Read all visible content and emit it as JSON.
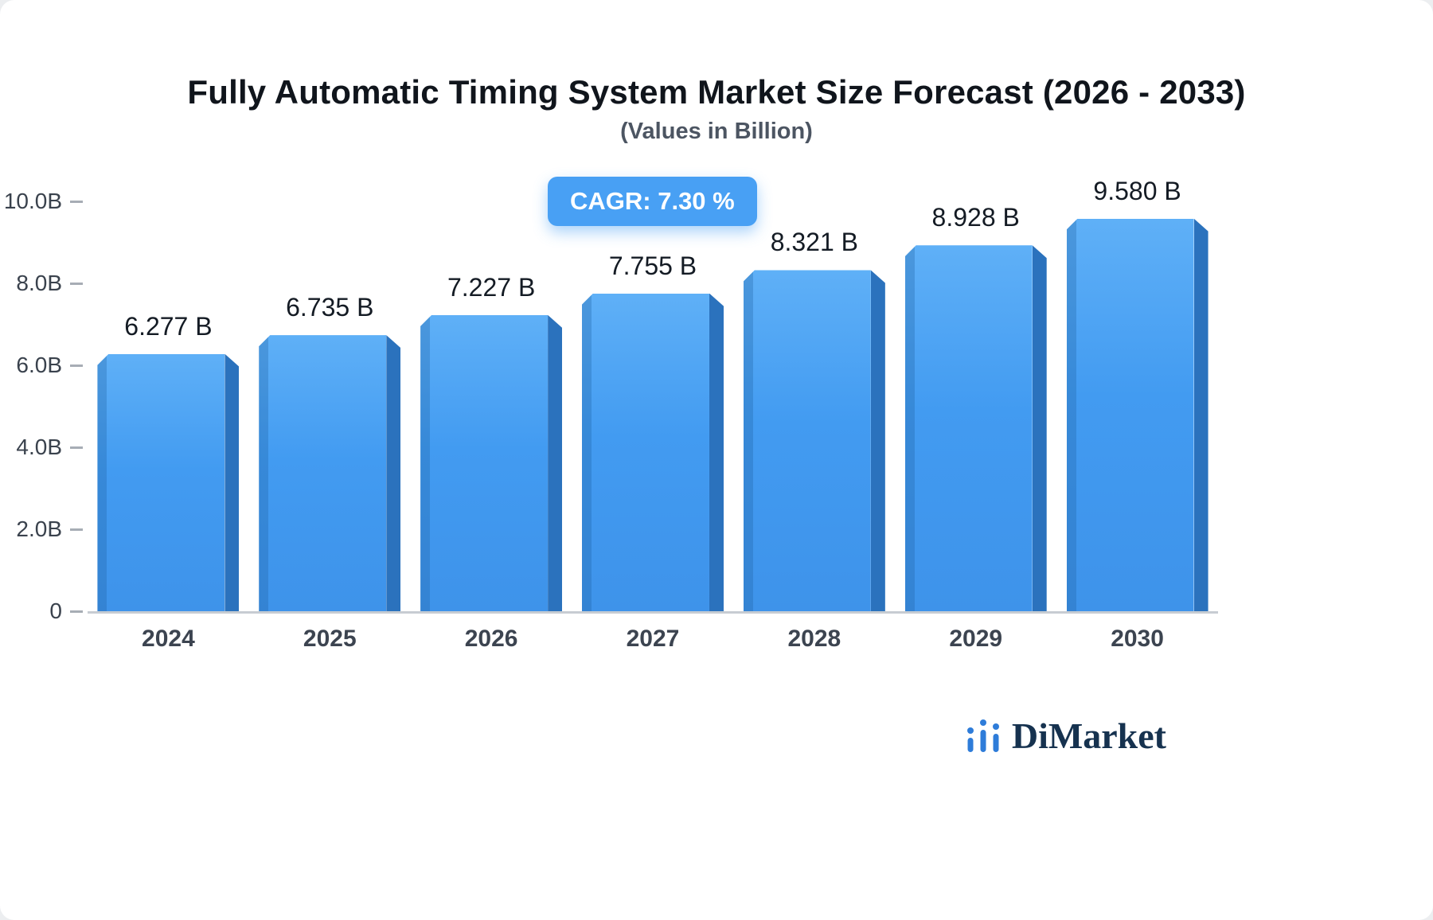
{
  "badge": {
    "label": "CAGR: 7.30 %"
  },
  "logo": {
    "text": "DiMarket",
    "icon": "bar-chart-logo-icon"
  },
  "chart_data": {
    "type": "bar",
    "title": "Fully Automatic Timing System Market Size Forecast (2026 - 2033)",
    "subtitle": "(Values in Billion)",
    "categories": [
      "2024",
      "2025",
      "2026",
      "2027",
      "2028",
      "2029",
      "2030"
    ],
    "values": [
      6.277,
      6.735,
      7.227,
      7.755,
      8.321,
      8.928,
      9.58
    ],
    "value_labels": [
      "6.277 B",
      "6.735 B",
      "7.227 B",
      "7.755 B",
      "8.321 B",
      "8.928 B",
      "9.580 B"
    ],
    "xlabel": "",
    "ylabel": "",
    "ylim": [
      0,
      10
    ],
    "yticks": [
      {
        "value": 0,
        "label": "0"
      },
      {
        "value": 2,
        "label": "2.0B"
      },
      {
        "value": 4,
        "label": "4.0B"
      },
      {
        "value": 6,
        "label": "6.0B"
      },
      {
        "value": 8,
        "label": "8.0B"
      },
      {
        "value": 10,
        "label": "10.0B"
      }
    ],
    "grid": false,
    "legend": false,
    "colors": {
      "bar_top": "#5FB0F7",
      "bar_mid": "#429BF1",
      "bar_bottom": "#3E93EA",
      "bar_side": "#2B72BD",
      "badge_bg": "#48A0F4",
      "logo_blue": "#2E7CD9",
      "logo_navy": "#16324F"
    }
  }
}
